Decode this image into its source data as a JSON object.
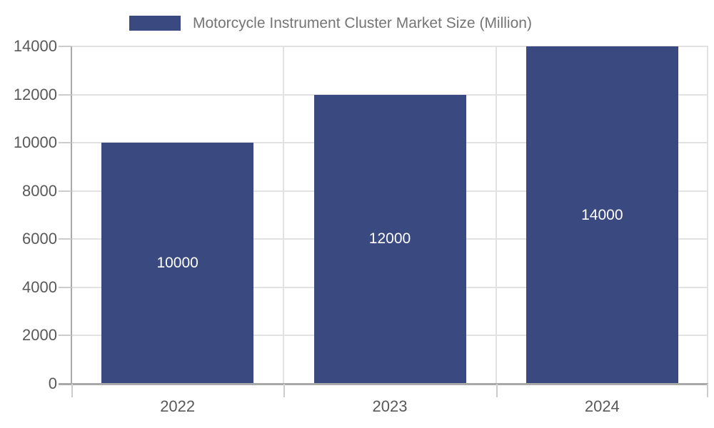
{
  "legend": {
    "label": "Motorcycle Instrument Cluster Market Size (Million)"
  },
  "chart_data": {
    "type": "bar",
    "title": "Motorcycle Instrument Cluster Market Size (Million)",
    "categories": [
      "2022",
      "2023",
      "2024"
    ],
    "values": [
      10000,
      12000,
      14000
    ],
    "bar_value_labels": [
      "10000",
      "12000",
      "14000"
    ],
    "xlabel": "",
    "ylabel": "",
    "ylim": [
      0,
      14000
    ],
    "yticks": [
      0,
      2000,
      4000,
      6000,
      8000,
      10000,
      12000,
      14000
    ],
    "grid": true,
    "legend_position": "top"
  },
  "colors": {
    "bar": "#3a4a80",
    "bar_label": "#ffffff",
    "grid": "#e2e2e2",
    "axis": "#a9a9a9",
    "tick_mark": "#cccccc",
    "tick_label": "#595959",
    "legend_text": "#757575",
    "background": "#ffffff"
  }
}
